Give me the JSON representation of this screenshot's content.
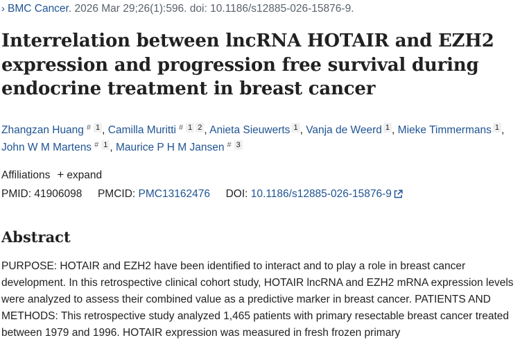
{
  "journal": {
    "name": "BMC Cancer",
    "citation": ". 2026 Mar 29;26(1):596. doi: 10.1186/s12885-026-15876-9."
  },
  "title": "Interrelation between lncRNA HOTAIR and EZH2 expression and progression free survival during endocrine treatment in breast cancer",
  "authors": [
    {
      "name": "Zhangzan Huang",
      "marks": [
        "#",
        "1"
      ]
    },
    {
      "name": "Camilla Muritti",
      "marks": [
        "#",
        "1",
        "2"
      ]
    },
    {
      "name": "Anieta Sieuwerts",
      "marks": [
        "1"
      ]
    },
    {
      "name": "Vanja de Weerd",
      "marks": [
        "1"
      ]
    },
    {
      "name": "Mieke Timmermans",
      "marks": [
        "1"
      ]
    },
    {
      "name": "John W M Martens",
      "marks": [
        "#",
        "1"
      ]
    },
    {
      "name": "Maurice P H M Jansen",
      "marks": [
        "#",
        "3"
      ]
    }
  ],
  "affiliations": {
    "label": "Affiliations",
    "toggle": "expand"
  },
  "ids": {
    "pmid_label": "PMID:",
    "pmid": "41906098",
    "pmcid_label": "PMCID:",
    "pmcid": "PMC13162476",
    "doi_label": "DOI:",
    "doi": "10.1186/s12885-026-15876-9"
  },
  "abstract": {
    "heading": "Abstract",
    "text": "PURPOSE: HOTAIR and EZH2 have been identified to interact and to play a role in breast cancer development. In this retrospective clinical cohort study, HOTAIR lncRNA and EZH2 mRNA expression levels were analyzed to assess their combined value as a predictive marker in breast cancer. PATIENTS AND METHODS: This retrospective study analyzed 1,465 patients with primary resectable breast cancer treated between 1979 and 1996. HOTAIR expression was measured in fresh frozen primary"
  },
  "colors": {
    "link": "#205493",
    "text": "#212121",
    "muted": "#5b616b"
  }
}
